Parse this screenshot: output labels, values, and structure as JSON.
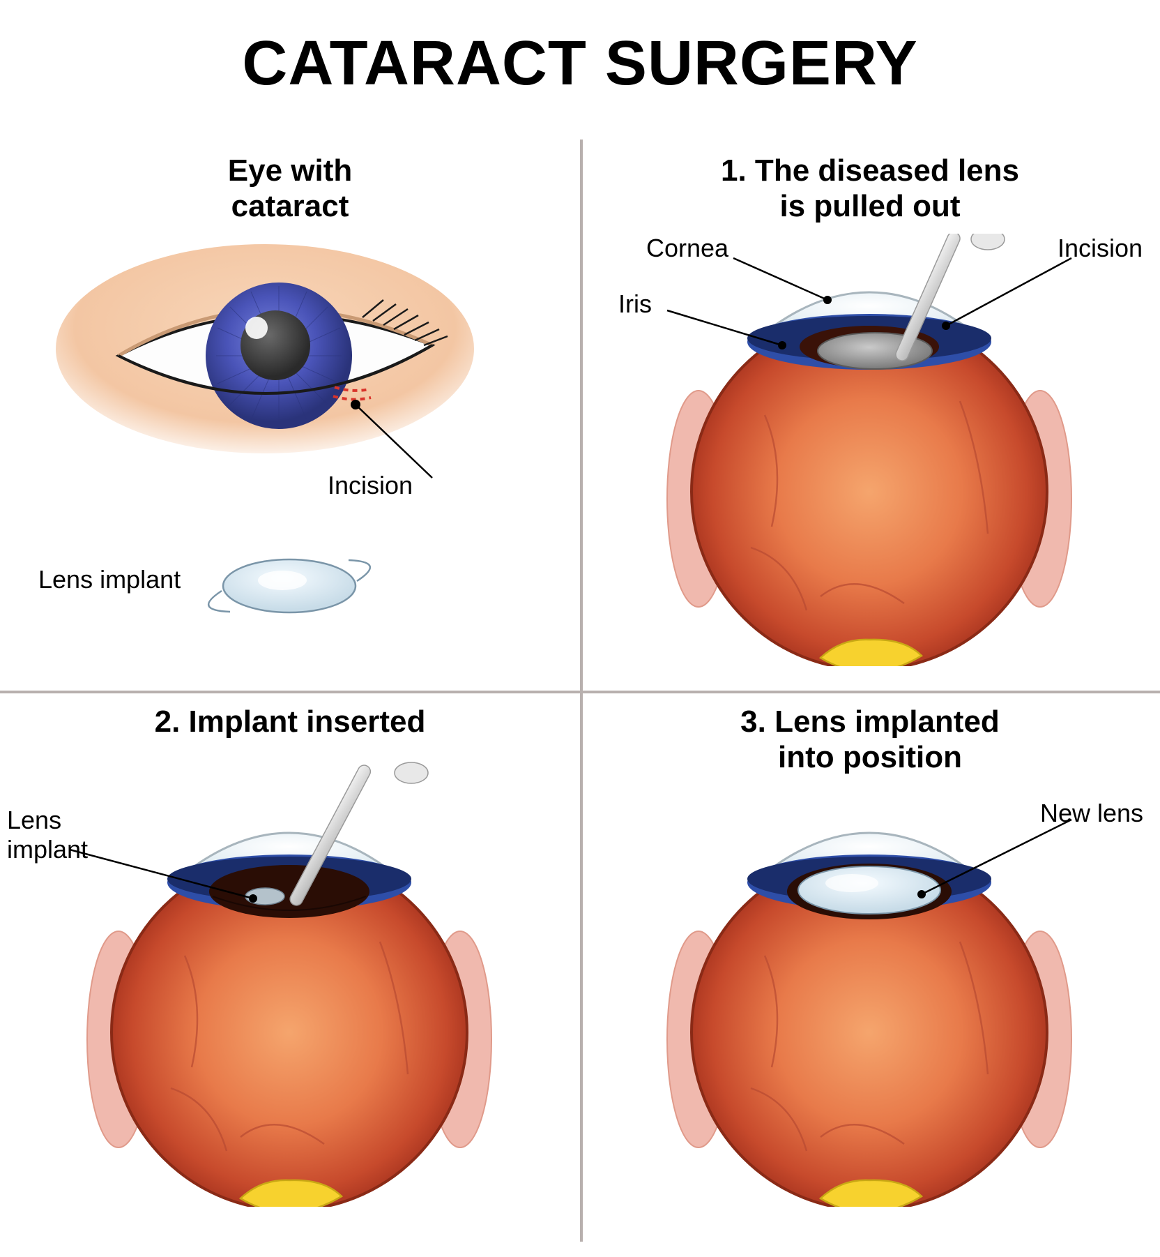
{
  "title": "CATARACT SURGERY",
  "title_fontsize": 90,
  "title_color": "#000000",
  "grid": {
    "divider_color": "#b8b0ae",
    "divider_width": 4,
    "v_split": 832,
    "h_split": 790
  },
  "panel_title_fontsize": 44,
  "label_fontsize": 36,
  "panels": {
    "tl": {
      "title": "Eye with\ncataract",
      "labels": {
        "incision": "Incision",
        "lens_implant": "Lens implant"
      }
    },
    "tr": {
      "title": "1. The diseased lens\nis pulled out",
      "labels": {
        "cornea": "Cornea",
        "iris": "Iris",
        "incision": "Incision"
      }
    },
    "bl": {
      "title": "2. Implant inserted",
      "labels": {
        "lens_implant": "Lens\nimplant"
      }
    },
    "br": {
      "title": "3. Lens implanted\ninto position",
      "labels": {
        "new_lens": "New lens"
      }
    }
  },
  "colors": {
    "skin": "#f3c6a3",
    "skin_shadow": "#e8b58f",
    "iris_blue": "#4a54b8",
    "iris_blue_light": "#6b76d6",
    "iris_blue_dark": "#2a337a",
    "pupil_dark": "#3a3a3a",
    "sclera": "#fdfdfd",
    "lash": "#1a1a1a",
    "incision_red": "#d9342b",
    "lens_implant_fill": "#dce9f2",
    "lens_implant_stroke": "#7a95a8",
    "eyeball_outer": "#c74a2c",
    "eyeball_mid": "#e87a4a",
    "eyeball_inner": "#f5a56d",
    "eyeball_deep": "#a8341f",
    "cornea_fill": "#e8f1f7",
    "cornea_stroke": "#a8b5bd",
    "iris_band": "#2e4ea8",
    "iris_band_dark": "#1a2d6b",
    "optic_yellow": "#f7d22e",
    "muscle_pink": "#f0b9ae",
    "muscle_pink_dark": "#e09a8a",
    "tool_grey": "#d8d8d8",
    "tool_grey_dark": "#a8a8a8",
    "lens_grey": "#b0b0b0",
    "lens_grey_dark": "#7a7a7a",
    "vein": "#b84a32",
    "black": "#000000"
  }
}
